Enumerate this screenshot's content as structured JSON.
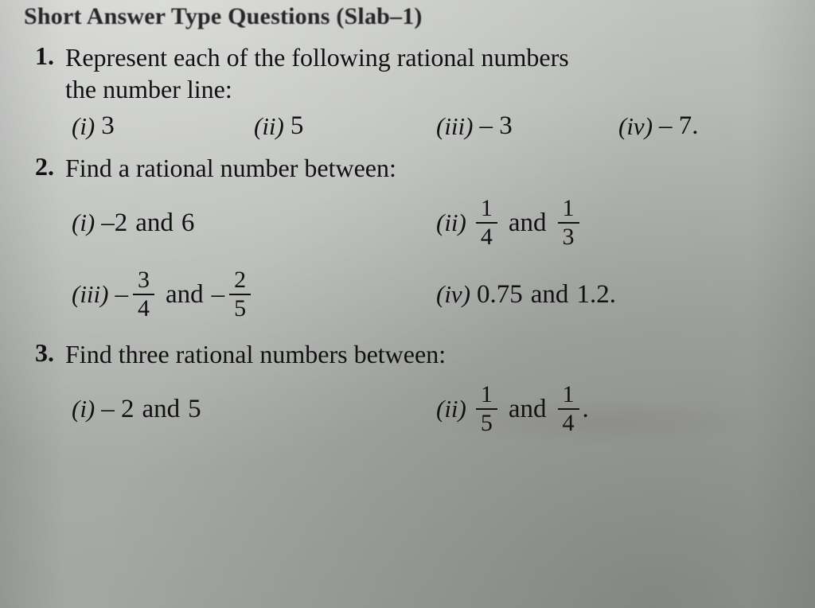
{
  "colors": {
    "text": "#111111",
    "fraction_bar": "#111111",
    "bg_top": "#c9cbc8",
    "bg_bottom": "#9fa39e"
  },
  "typography": {
    "family": "Palatino / Georgia serif",
    "body_size_pt": 18,
    "roman_italic": true,
    "qnum_bold": true
  },
  "header": "Short Answer Type Questions (Slab–1)",
  "q1": {
    "num": "1.",
    "text_line1": "Represent each of the following rational numbers",
    "text_line2": "the number line:",
    "opts": {
      "i": {
        "label": "(i)",
        "value": "3"
      },
      "ii": {
        "label": "(ii)",
        "value": "5"
      },
      "iii": {
        "label": "(iii)",
        "value": "– 3"
      },
      "iv": {
        "label": "(iv)",
        "value": "– 7."
      }
    }
  },
  "q2": {
    "num": "2.",
    "text": "Find a rational number between:",
    "opts": {
      "i": {
        "label": "(i)",
        "a": "–2",
        "and": "and",
        "b": "6"
      },
      "ii": {
        "label": "(ii)",
        "frac_a": {
          "n": "1",
          "d": "4"
        },
        "and": "and",
        "frac_b": {
          "n": "1",
          "d": "3"
        }
      },
      "iii": {
        "label": "(iii)",
        "neg_a": "–",
        "frac_a": {
          "n": "3",
          "d": "4"
        },
        "and": "and",
        "neg_b": "–",
        "frac_b": {
          "n": "2",
          "d": "5"
        }
      },
      "iv": {
        "label": "(iv)",
        "a": "0.75",
        "and": "and",
        "b": "1.2."
      }
    }
  },
  "q3": {
    "num": "3.",
    "text": "Find three rational numbers between:",
    "opts": {
      "i": {
        "label": "(i)",
        "a": "– 2",
        "and": "and",
        "b": "5"
      },
      "ii": {
        "label": "(ii)",
        "frac_a": {
          "n": "1",
          "d": "5"
        },
        "and": "and",
        "frac_b": {
          "n": "1",
          "d": "4"
        },
        "period": "."
      }
    }
  }
}
